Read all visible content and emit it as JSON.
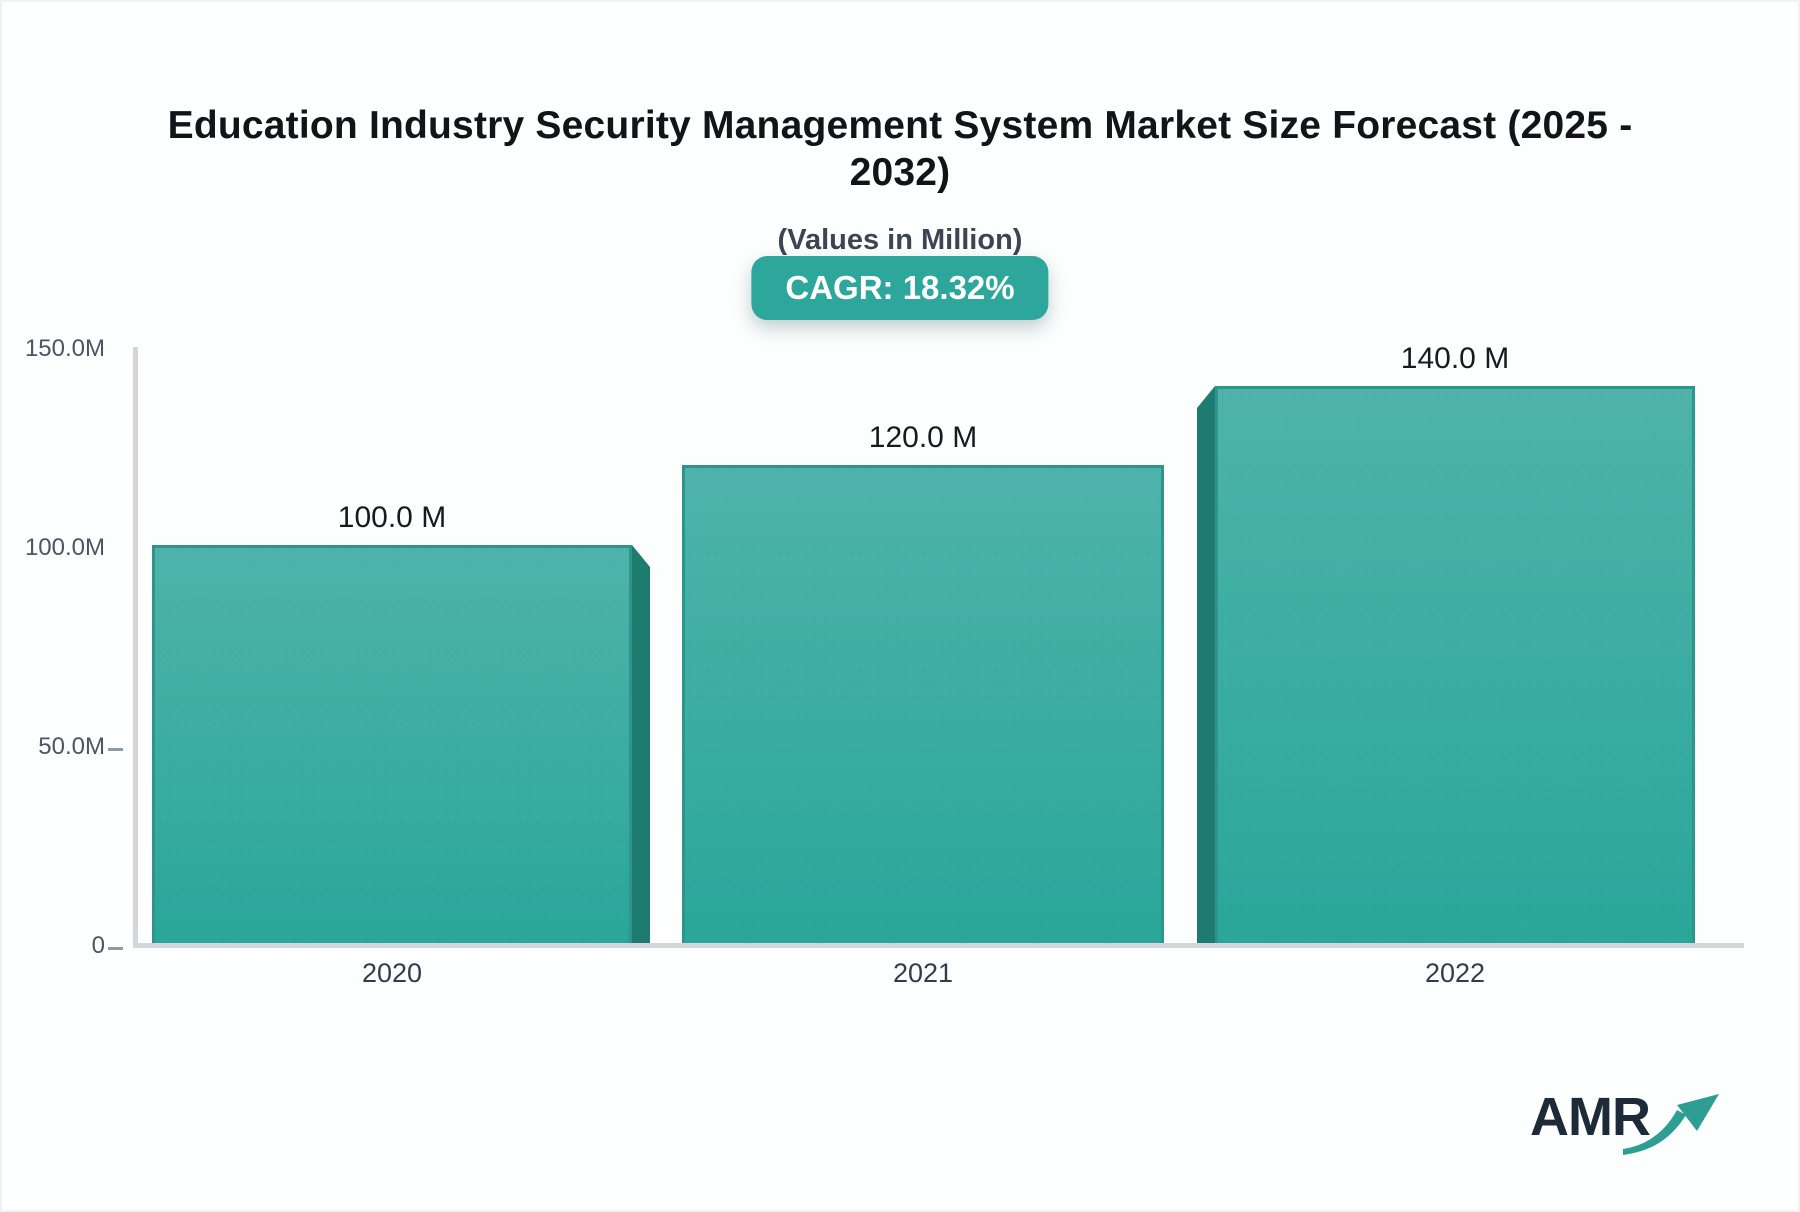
{
  "chart_data": {
    "type": "bar",
    "title": "Education Industry Security Management System Market Size Forecast (2025 - 2032)",
    "subtitle": "(Values in Million)",
    "categories": [
      "2020",
      "2021",
      "2022"
    ],
    "values": [
      100,
      120,
      140
    ],
    "value_labels": [
      "100.0 M",
      "120.0 M",
      "140.0 M"
    ],
    "y_ticks": [
      {
        "label": "150.0M",
        "value": 150
      },
      {
        "label": "100.0M",
        "value": 100
      },
      {
        "label": "50.0M",
        "value": 50
      },
      {
        "label": "0",
        "value": 0
      }
    ],
    "ylim": [
      0,
      150
    ],
    "xlabel": "",
    "ylabel": "",
    "grid": false,
    "legend": false,
    "colors": {
      "bar_top": "#4FB3AB",
      "bar_bottom": "#2AA79A",
      "bar_edge": "#2E958C",
      "bar_side": "#1E7B70",
      "axis": "#D3D6DB",
      "tick": "#8A9BA6",
      "tick_label": "#4B5563",
      "value_label": "#171B21",
      "category_label": "#323D4B"
    }
  },
  "badge": {
    "label": "CAGR: 18.32%",
    "bg": "#2DA79C",
    "text_color": "#FFFFFF"
  },
  "branding": {
    "logo_text": "AMR",
    "text_color": "#1D2A37",
    "arrow_color": "#2E9E92"
  }
}
